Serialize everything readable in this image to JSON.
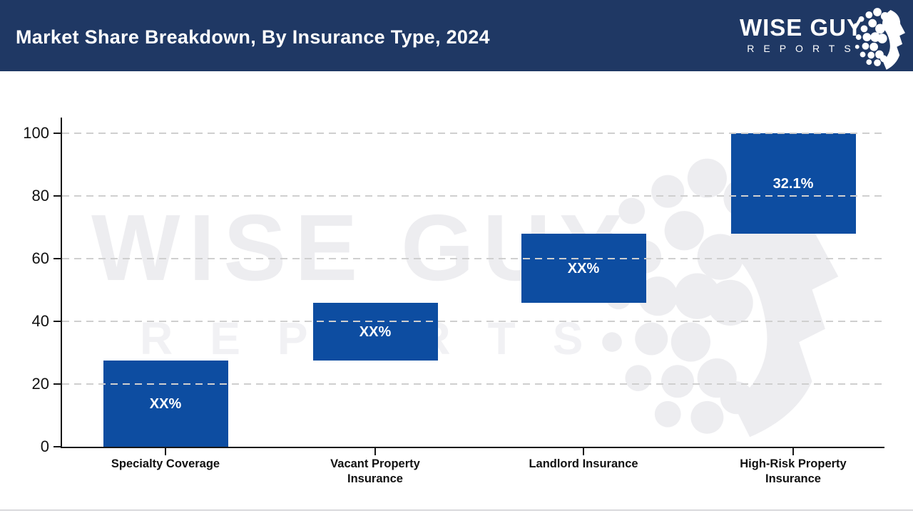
{
  "header": {
    "title": "Market Share Breakdown, By Insurance Type, 2024",
    "logo": {
      "name": "WISE GUY",
      "subname": "REPORTS"
    }
  },
  "watermark": {
    "line1": "WISE GUY",
    "line2": "REPORTS"
  },
  "colors": {
    "header_bg": "#1f3864",
    "bar": "#0d4da1",
    "bar_label": "#ffffff",
    "grid": "#cfcfcf",
    "axis": "#161616",
    "watermark": "#ededf0"
  },
  "chart_data": {
    "type": "bar",
    "subtype": "waterfall-floating-bars",
    "title": "Market Share Breakdown, By Insurance Type, 2024",
    "categories": [
      "Specialty Coverage",
      "Vacant Property\nInsurance",
      "Landlord Insurance",
      "High-Risk Property\nInsurance"
    ],
    "segments": [
      {
        "category": "Specialty Coverage",
        "start": 0,
        "end": 27.5,
        "label": "XX%"
      },
      {
        "category": "Vacant Property Insurance",
        "start": 27.5,
        "end": 45.9,
        "label": "XX%"
      },
      {
        "category": "Landlord Insurance",
        "start": 45.9,
        "end": 67.9,
        "label": "XX%"
      },
      {
        "category": "High-Risk Property Insurance",
        "start": 67.9,
        "end": 100,
        "label": "32.1%"
      }
    ],
    "values": [
      27.5,
      18.4,
      22.0,
      32.1
    ],
    "xlabel": "",
    "ylabel": "",
    "ylim": [
      0,
      100
    ],
    "yticks": [
      0,
      20,
      40,
      60,
      80,
      100
    ],
    "grid": "horizontal dashed",
    "legend": "none",
    "bar_color": "#0d4da1"
  }
}
